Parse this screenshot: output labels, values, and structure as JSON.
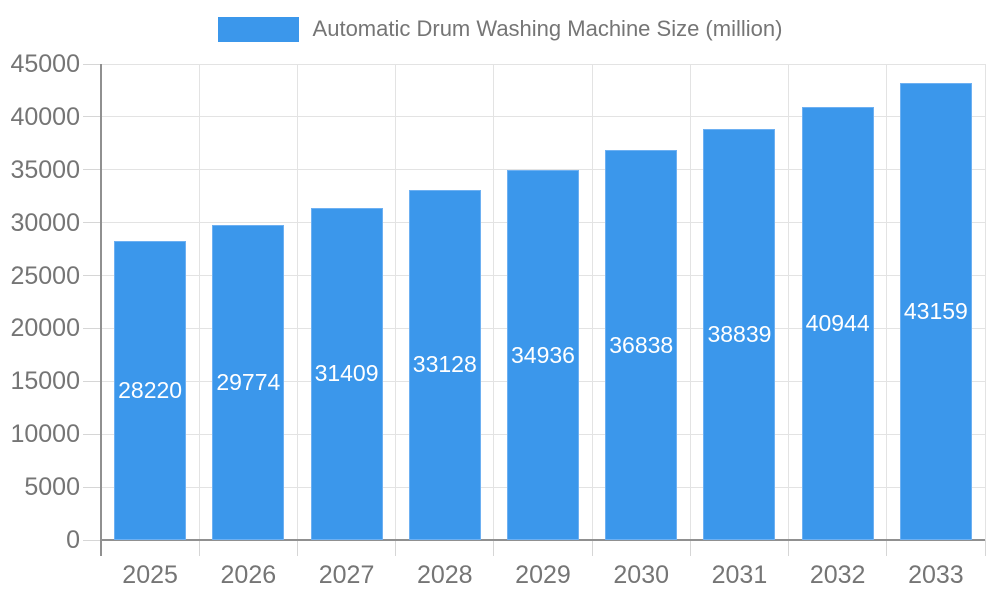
{
  "chart_data": {
    "type": "bar",
    "title": "",
    "categories": [
      "2025",
      "2026",
      "2027",
      "2028",
      "2029",
      "2030",
      "2031",
      "2032",
      "2033"
    ],
    "series": [
      {
        "name": "Automatic Drum Washing Machine Size (million)",
        "values": [
          28220,
          29774,
          31409,
          33128,
          34936,
          36838,
          38839,
          40944,
          43159
        ]
      }
    ],
    "xlabel": "",
    "ylabel": "",
    "ylim": [
      0,
      45000
    ],
    "yticks": [
      0,
      5000,
      10000,
      15000,
      20000,
      25000,
      30000,
      35000,
      40000,
      45000
    ],
    "grid": true,
    "legend_position": "top",
    "bar_value_labels_shown": true,
    "colors": {
      "bar": "#3b97eb",
      "bar_border": "#6db0f2",
      "value_label": "#ffffff",
      "axis_text": "#757575",
      "gridline": "#e3e3e3",
      "tick": "#d6d6d6",
      "axis_line": "#909090",
      "background": "#ffffff"
    }
  }
}
